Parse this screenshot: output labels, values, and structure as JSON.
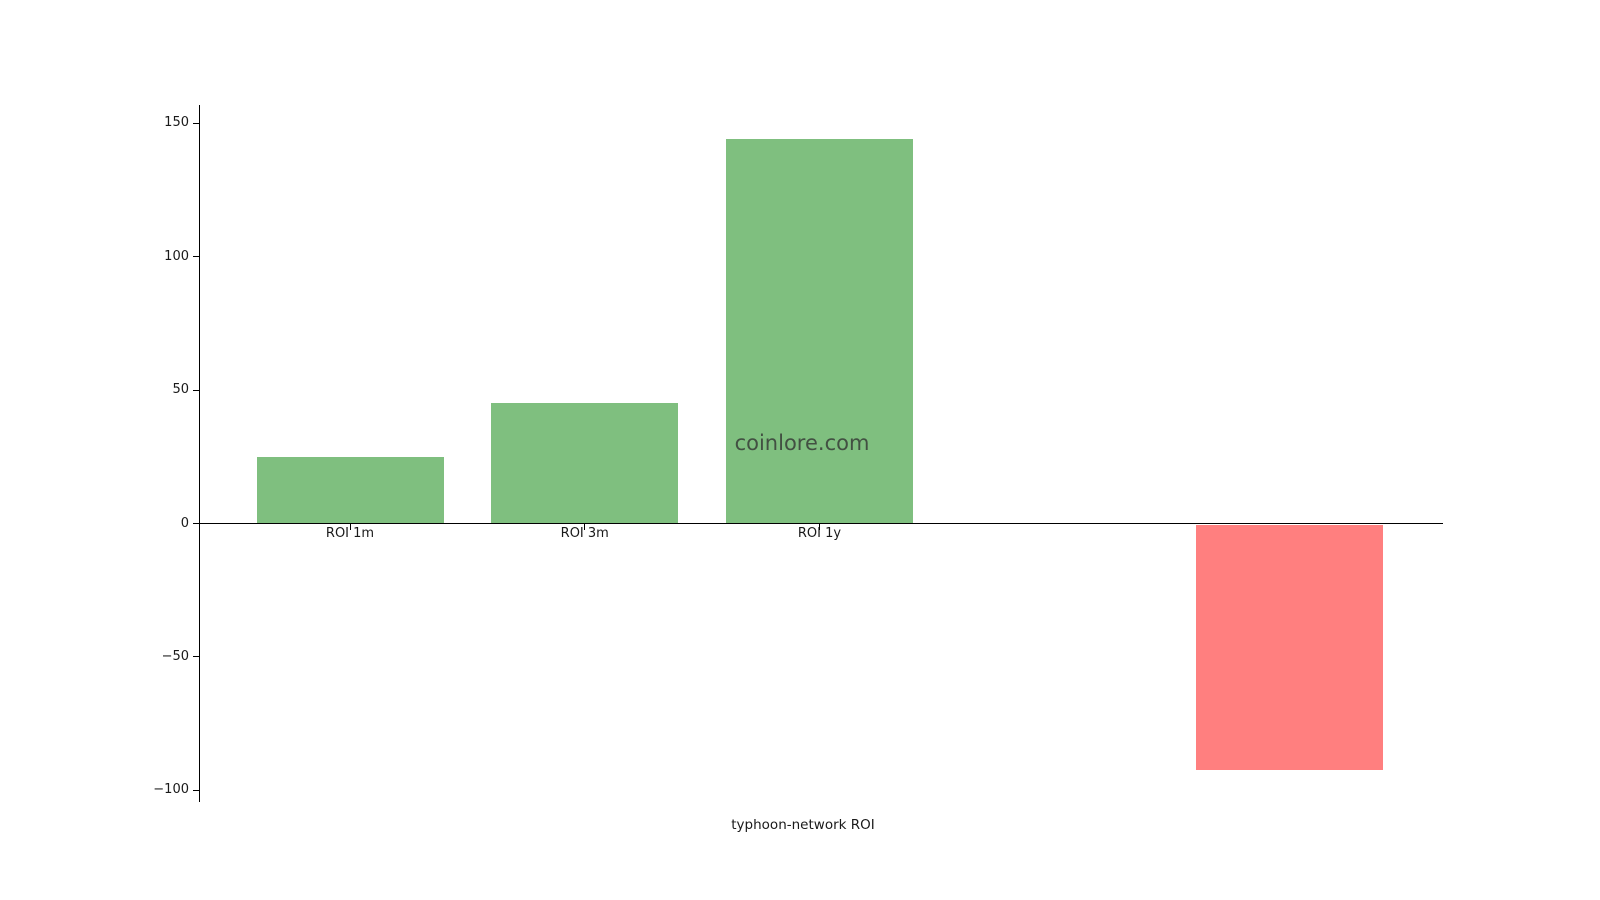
{
  "chart_data": {
    "type": "bar",
    "title": "typhoon-network ROI",
    "watermark": "coinlore.com",
    "categories": [
      "ROI 1m",
      "ROI 3m",
      "ROI 1y",
      "",
      ""
    ],
    "values": [
      25,
      45,
      144,
      0,
      -92
    ],
    "yticks": [
      150,
      100,
      50,
      0,
      -50,
      -100
    ],
    "ylim": [
      -104,
      157
    ],
    "xlabel": "",
    "ylabel": "",
    "grid": false,
    "legend": false,
    "colors": {
      "positive_bar": "#7fbf7f",
      "negative_bar": "#ff7f7f",
      "axis": "#000000",
      "tick_text": "#1a1a1a",
      "title_text": "#1a1a1a",
      "watermark_text": "#3f4b3f"
    }
  }
}
